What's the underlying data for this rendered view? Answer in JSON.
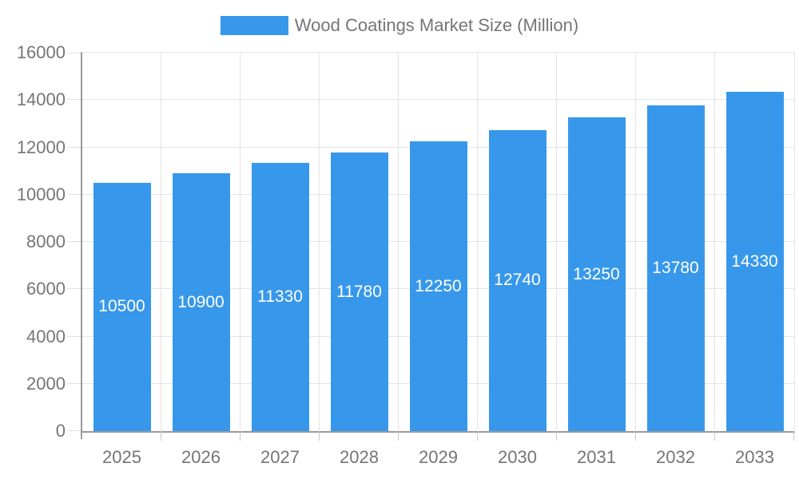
{
  "chart_data": {
    "type": "bar",
    "title": "Wood Coatings Market Size (Million)",
    "categories": [
      "2025",
      "2026",
      "2027",
      "2028",
      "2029",
      "2030",
      "2031",
      "2032",
      "2033"
    ],
    "series": [
      {
        "name": "Wood Coatings Market Size (Million)",
        "values": [
          10500,
          10900,
          11330,
          11780,
          12250,
          12740,
          13250,
          13780,
          14330
        ]
      }
    ],
    "xlabel": "",
    "ylabel": "",
    "ylim": [
      0,
      16000
    ],
    "ytick_step": 2000,
    "ytick_labels": [
      "0",
      "2000",
      "4000",
      "6000",
      "8000",
      "10000",
      "12000",
      "14000",
      "16000"
    ],
    "grid": true,
    "legend_position": "top",
    "data_labels": "inside-center-white"
  },
  "legend": {
    "label": "Wood Coatings Market Size (Million)",
    "swatch_color": "#3798EB"
  },
  "colors": {
    "bar": "#3798EB",
    "bar_label_text": "#ffffff",
    "axis_line": "#9a9a9a",
    "gridline": "#e4e4e4",
    "axis_text": "#757575",
    "background": "#ffffff"
  }
}
